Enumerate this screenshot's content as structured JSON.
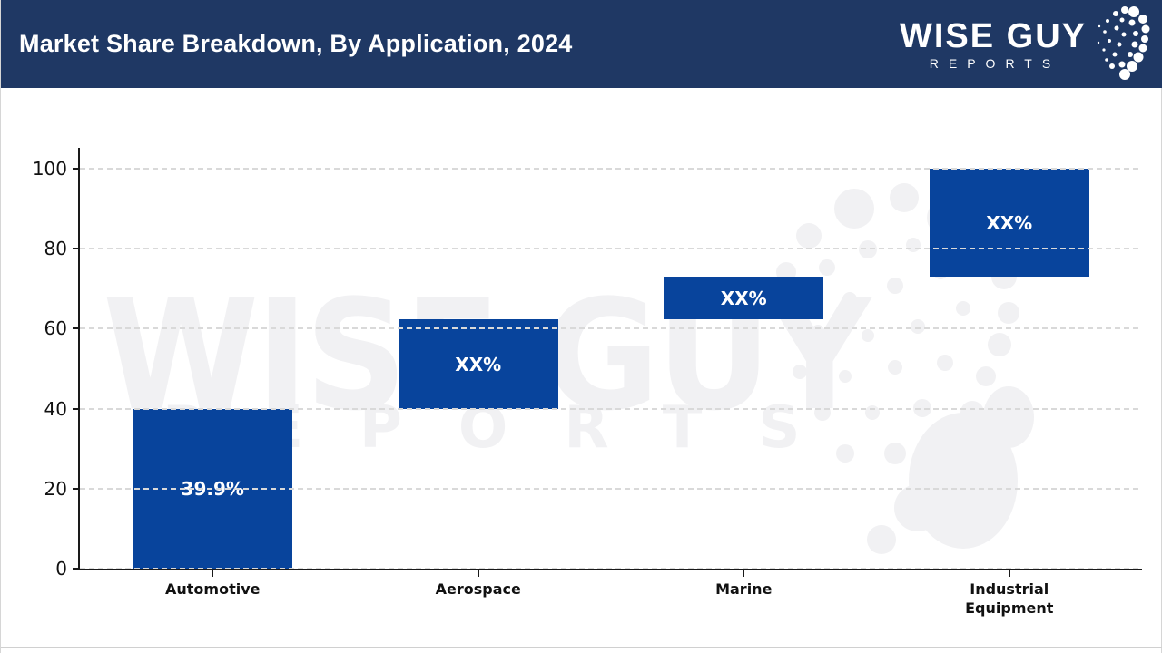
{
  "header": {
    "title": "Market Share Breakdown, By Application, 2024",
    "bg_color": "#1f3864",
    "logo": {
      "line1": "WISE GUY",
      "line2": "REPORTS"
    }
  },
  "watermark": {
    "line1": "WISE GUY",
    "line2": "REPORTS"
  },
  "chart_data": {
    "type": "bar",
    "subtype": "floating-waterfall",
    "title": "Market Share Breakdown, By Application, 2024",
    "categories": [
      "Automotive",
      "Aerospace",
      "Marine",
      "Industrial Equipment"
    ],
    "segments": [
      {
        "category": "Automotive",
        "start": 0,
        "end": 39.9,
        "label": "39.9%"
      },
      {
        "category": "Aerospace",
        "start": 39.9,
        "end": 62.3,
        "label": "XX%"
      },
      {
        "category": "Marine",
        "start": 62.3,
        "end": 73.0,
        "label": "XX%"
      },
      {
        "category": "Industrial Equipment",
        "start": 73.0,
        "end": 100,
        "label": "XX%"
      }
    ],
    "yticks": [
      0,
      20,
      40,
      60,
      80,
      100
    ],
    "ylim": [
      0,
      100
    ],
    "xlabel": "",
    "ylabel": "",
    "grid": "horizontal-dashed-over-bars",
    "legend": "none",
    "bar_color": "#08449c",
    "bar_label_color": "#ffffff",
    "axis_color": "#1a1a1a"
  }
}
